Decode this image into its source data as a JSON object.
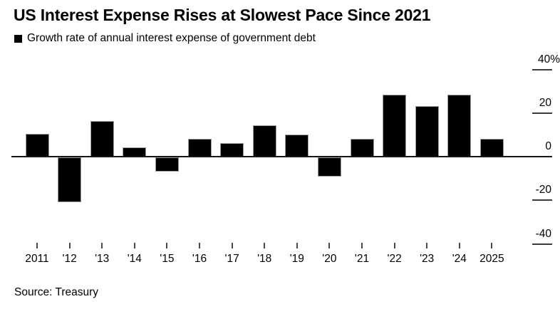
{
  "header": {
    "title": "US Interest Expense Rises at Slowest Pace Since 2021",
    "legend_label": "Growth rate of annual interest expense of government debt"
  },
  "footer": {
    "source": "Source: Treasury"
  },
  "colors": {
    "bar_fill": "#000000",
    "bar_border": "#9b9b9b",
    "axis_line": "#161616",
    "tick": "#4a4a4a",
    "background": "#ffffff"
  },
  "chart_data": {
    "type": "bar",
    "title": "US Interest Expense Rises at Slowest Pace Since 2021",
    "legend": [
      "Growth rate of annual interest expense of government debt"
    ],
    "categories": [
      "2011",
      "'12",
      "'13",
      "'14",
      "'15",
      "'16",
      "'17",
      "'18",
      "'19",
      "'20",
      "'21",
      "'22",
      "'23",
      "'24",
      "2025"
    ],
    "values": [
      10.3,
      -20.7,
      16.3,
      4.1,
      -6.5,
      8.2,
      6.2,
      14.4,
      10.1,
      -8.9,
      8.2,
      28.5,
      23.3,
      28.5,
      8.2
    ],
    "unit": "%",
    "xlabel": "",
    "ylabel": "",
    "yticks": [
      40,
      20,
      0,
      -20,
      -40
    ],
    "ytick_labels": [
      "40%",
      "20",
      "0",
      "-20",
      "-40"
    ],
    "ylim": [
      -45,
      42
    ],
    "grid": "right-tick-segments",
    "legend_position": "top-left",
    "source": "Source: Treasury"
  }
}
